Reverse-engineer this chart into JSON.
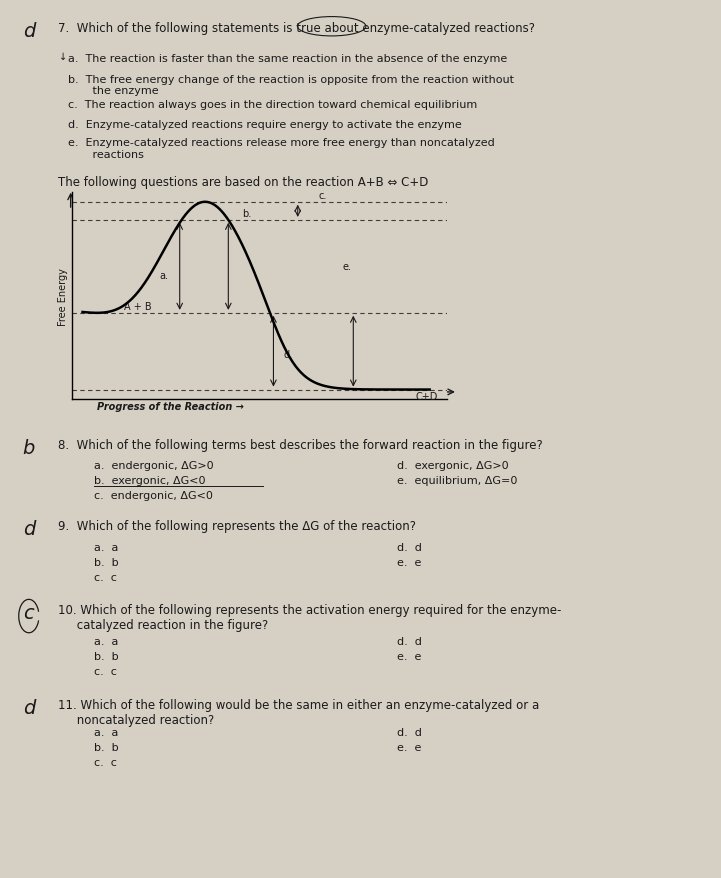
{
  "bg_color": "#d6cfc4",
  "text_color": "#1a1a1a",
  "title_q7": "7.  Which of the following statements is true about enzyme-catalyzed reactions?",
  "q7_answer_letter": "d",
  "q7_options": [
    "a.  The reaction is faster than the same reaction in the absence of the enzyme",
    "b.  The free energy change of the reaction is opposite from the reaction without\n       the enzyme",
    "c.  The reaction always goes in the direction toward chemical equilibrium",
    "d.  Enzyme-catalyzed reactions require energy to activate the enzyme",
    "e.  Enzyme-catalyzed reactions release more free energy than noncatalyzed\n       reactions"
  ],
  "graph_intro": "The following questions are based on the reaction A+B ⇔ C+D",
  "ylabel": "Free Energy",
  "xlabel": "Progress of the Reaction",
  "q8": "8.  Which of the following terms best describes the forward reaction in the figure?",
  "q8_answer_letter": "b",
  "q8_col1": [
    "a.  endergonic, ΔG>0",
    "b.  exergonic, ΔG<0",
    "c.  endergonic, ΔG<0"
  ],
  "q8_col2": [
    "d.  exergonic, ΔG>0",
    "e.  equilibrium, ΔG=0"
  ],
  "q9": "9.  Which of the following represents the ΔG of the reaction?",
  "q9_answer_letter": "d",
  "q9_col1": [
    "a.  a",
    "b.  b",
    "c.  c"
  ],
  "q9_col2": [
    "d.  d",
    "e.  e"
  ],
  "q10": "10. Which of the following represents the activation energy required for the enzyme-\n     catalyzed reaction in the figure?",
  "q10_answer_letter": "c",
  "q10_col1": [
    "a.  a",
    "b.  b",
    "c.  c"
  ],
  "q10_col2": [
    "d.  d",
    "e.  e"
  ],
  "q11": "11. Which of the following would be the same in either an enzyme-catalyzed or a\n     noncatalyzed reaction?",
  "q11_answer_letter": "d",
  "q11_col1": [
    "a.  a",
    "b.  b",
    "c.  c"
  ],
  "q11_col2": [
    "d.  d",
    "e.  e"
  ]
}
